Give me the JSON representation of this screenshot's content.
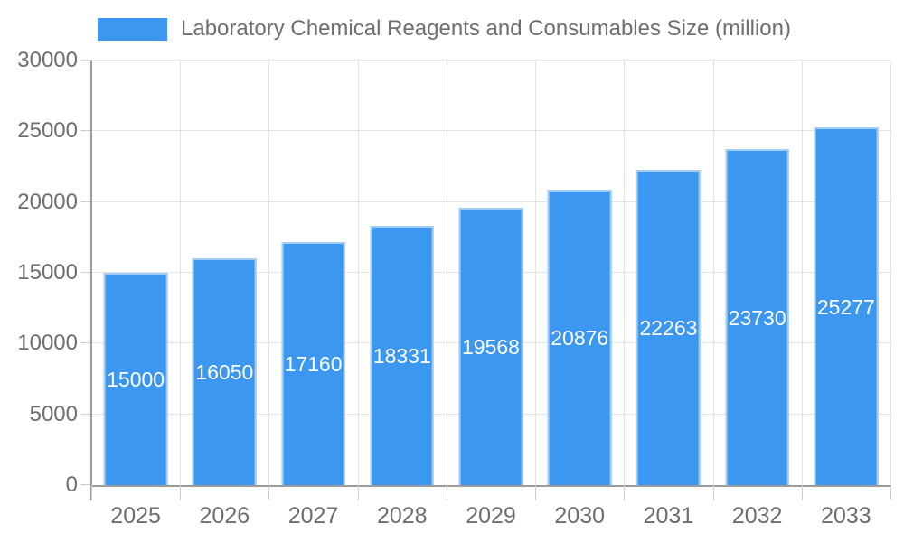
{
  "chart_data": {
    "type": "bar",
    "title": "Laboratory Chemical Reagents and Consumables Size (million)",
    "categories": [
      "2025",
      "2026",
      "2027",
      "2028",
      "2029",
      "2030",
      "2031",
      "2032",
      "2033"
    ],
    "values": [
      15000,
      16050,
      17160,
      18331,
      19568,
      20876,
      22263,
      23730,
      25277
    ],
    "xlabel": "",
    "ylabel": "",
    "ylim": [
      0,
      30000
    ],
    "ytick_step": 5000,
    "y_tick_labels": [
      "0",
      "5000",
      "10000",
      "15000",
      "20000",
      "25000",
      "30000"
    ],
    "grid": true,
    "legend_position": "top-left",
    "colors": {
      "bar_fill": "#3B97F0",
      "bar_edge": "#A4CDF5",
      "grid_line": "#E3E3E3",
      "axis_line": "#9C9C9C",
      "tick_line": "#CDCDCD",
      "label_text": "#6E6E6E",
      "value_label_text": "#FFFFFF",
      "background": "#FFFFFF"
    }
  }
}
